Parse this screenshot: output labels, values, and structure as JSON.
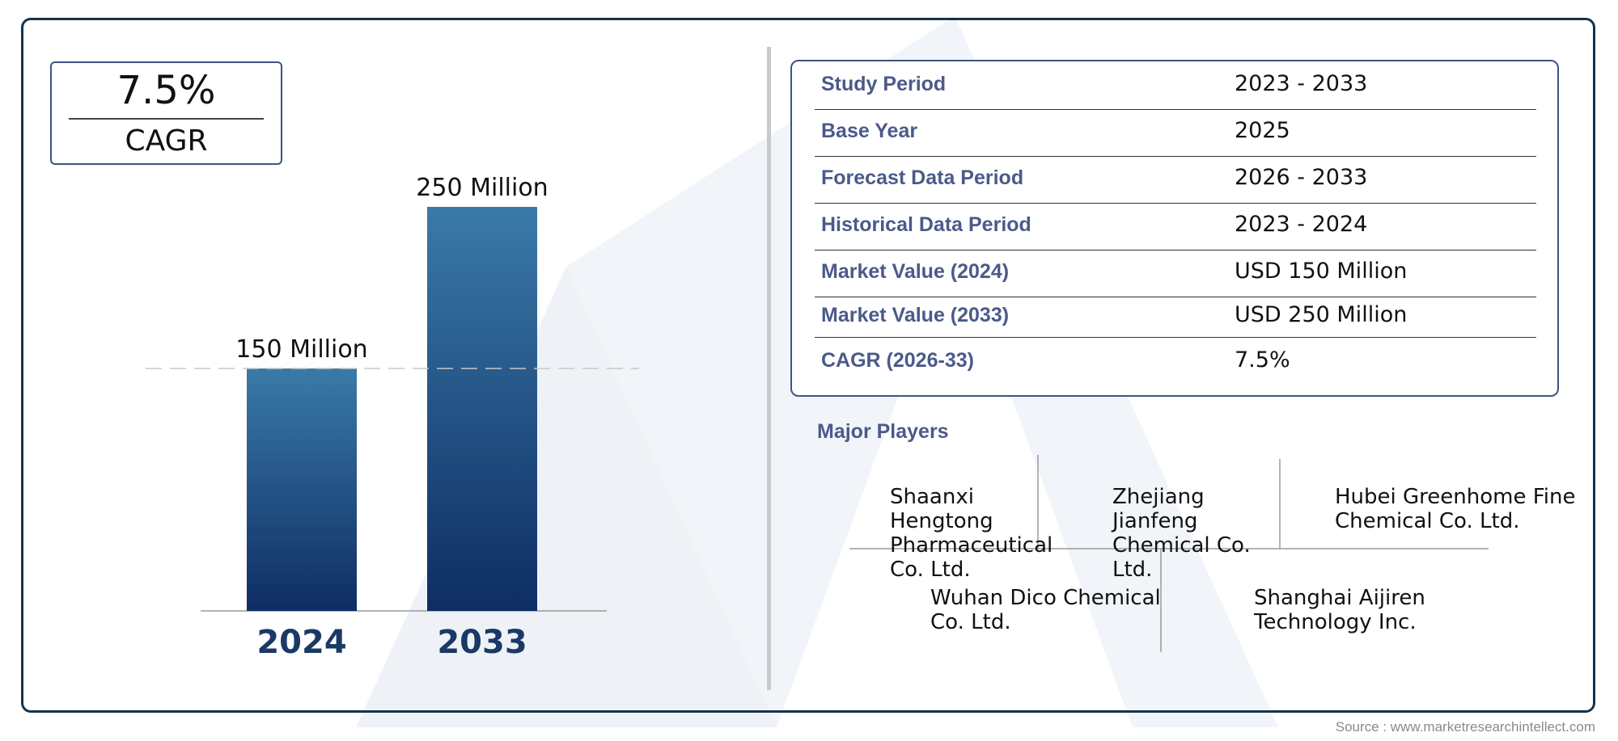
{
  "cagr_badge": {
    "value": "7.5%",
    "label": "CAGR"
  },
  "chart_data": {
    "type": "bar",
    "categories": [
      "2024",
      "2033"
    ],
    "values": [
      150,
      250
    ],
    "value_labels": [
      "150 Million",
      "250 Million"
    ],
    "unit": "Million",
    "reference_line_at": 150,
    "colors": {
      "bar_top": "#3a7aa8",
      "bar_bottom": "#0e2d63",
      "tick_label": "#1b3966"
    }
  },
  "info_table": {
    "rows": [
      {
        "key": "Study Period",
        "value": "2023 - 2033"
      },
      {
        "key": "Base Year",
        "value": "2025"
      },
      {
        "key": "Forecast Data Period",
        "value": "2026 - 2033"
      },
      {
        "key": "Historical Data Period",
        "value": "2023 - 2024"
      },
      {
        "key": "Market Value (2024)",
        "value": "USD 150 Million"
      },
      {
        "key": "Market Value (2033)",
        "value": "USD 250 Million"
      },
      {
        "key": "CAGR (2026-33)",
        "value": "7.5%"
      }
    ]
  },
  "major_players": {
    "title": "Major Players",
    "players": [
      "Shaanxi Hengtong Pharmaceutical Co. Ltd.",
      "Zhejiang Jianfeng Chemical Co. Ltd.",
      "Hubei Greenhome Fine Chemical Co. Ltd.",
      "Wuhan Dico Chemical Co. Ltd.",
      "Shanghai Aijiren Technology Inc."
    ]
  },
  "source": "Source : www.marketresearchintellect.com",
  "colors": {
    "accent": "#3e5382",
    "frame": "#13334c",
    "label_text": "#4a5a8a"
  }
}
